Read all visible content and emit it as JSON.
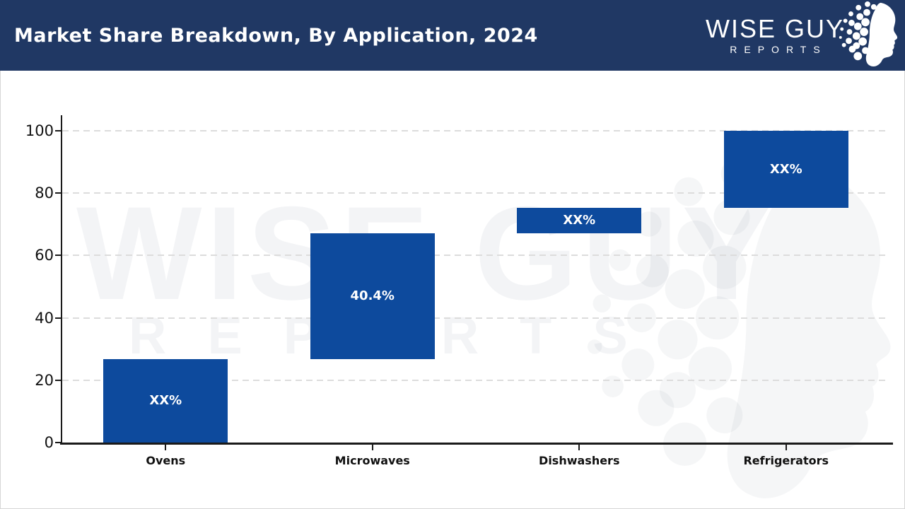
{
  "header": {
    "title": "Market Share Breakdown, By Application, 2024",
    "bg_color": "#203864",
    "logo": {
      "line1": "WISE GUY",
      "line2": "REPORTS"
    }
  },
  "watermark": {
    "line1": "WISE GUY",
    "line2": "REPORTS"
  },
  "chart_data": {
    "type": "bar",
    "subtype": "waterfall-floating-bars",
    "title": "Market Share Breakdown, By Application, 2024",
    "categories": [
      "Ovens",
      "Microwaves",
      "Dishwashers",
      "Refrigerators"
    ],
    "segments": [
      {
        "category": "Ovens",
        "start": 0,
        "end": 26.8,
        "label": "XX%"
      },
      {
        "category": "Microwaves",
        "start": 26.8,
        "end": 67.2,
        "label": "40.4%"
      },
      {
        "category": "Dishwashers",
        "start": 67.2,
        "end": 75.2,
        "label": "XX%"
      },
      {
        "category": "Refrigerators",
        "start": 75.2,
        "end": 100,
        "label": "XX%"
      }
    ],
    "xlabel": "",
    "ylabel": "",
    "ylim": [
      0,
      105
    ],
    "yticks": [
      0,
      20,
      40,
      60,
      80,
      100
    ],
    "grid": "horizontal-dashed",
    "legend": "none",
    "bar_color": "#0d4a9d",
    "bar_label_color": "#ffffff",
    "axis_color": "#1a1a1a",
    "grid_color": "#dcdcdc"
  }
}
